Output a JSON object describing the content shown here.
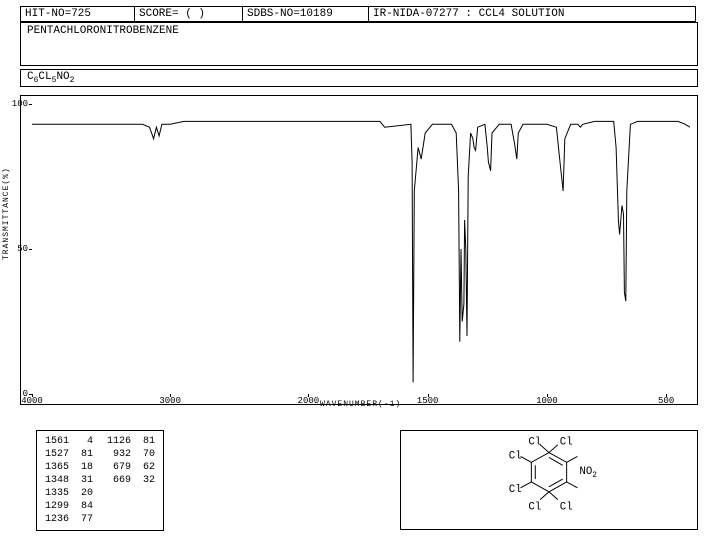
{
  "header": {
    "hit_no": "HIT-NO=725",
    "score": "SCORE=  (  )",
    "sdbs_no": "SDBS-NO=10189",
    "ir_info": "IR-NIDA-07277 : CCL4 SOLUTION"
  },
  "compound_name": "PENTACHLORONITROBENZENE",
  "formula_html": "C<sub>6</sub>CL<sub>5</sub>NO<sub>2</sub>",
  "chart": {
    "type": "line",
    "ylabel": "TRANSMITTANCE(%)",
    "xlabel": "WAVENUMBER(-1)",
    "ylim": [
      0,
      100
    ],
    "yticks": [
      0,
      50,
      100
    ],
    "xlim": [
      4000,
      400
    ],
    "xticks_major": [
      4000,
      3000,
      2000,
      1500,
      1000,
      500
    ],
    "line_color": "#000000",
    "background_color": "#ffffff",
    "points": [
      [
        4000,
        93
      ],
      [
        3900,
        93
      ],
      [
        3800,
        93
      ],
      [
        3700,
        93
      ],
      [
        3600,
        93
      ],
      [
        3500,
        93
      ],
      [
        3400,
        93
      ],
      [
        3300,
        93
      ],
      [
        3200,
        93
      ],
      [
        3150,
        92
      ],
      [
        3120,
        88
      ],
      [
        3100,
        92
      ],
      [
        3080,
        89
      ],
      [
        3060,
        93
      ],
      [
        3000,
        93
      ],
      [
        2900,
        94
      ],
      [
        2800,
        94
      ],
      [
        2700,
        94
      ],
      [
        2600,
        94
      ],
      [
        2500,
        94
      ],
      [
        2400,
        94
      ],
      [
        2300,
        94
      ],
      [
        2200,
        94
      ],
      [
        2100,
        94
      ],
      [
        2000,
        94
      ],
      [
        1900,
        94
      ],
      [
        1800,
        94
      ],
      [
        1700,
        94
      ],
      [
        1680,
        92
      ],
      [
        1570,
        93
      ],
      [
        1565,
        80
      ],
      [
        1561,
        4
      ],
      [
        1556,
        70
      ],
      [
        1540,
        85
      ],
      [
        1530,
        82
      ],
      [
        1527,
        81
      ],
      [
        1510,
        90
      ],
      [
        1480,
        93
      ],
      [
        1400,
        93
      ],
      [
        1380,
        90
      ],
      [
        1370,
        70
      ],
      [
        1365,
        18
      ],
      [
        1360,
        50
      ],
      [
        1355,
        25
      ],
      [
        1348,
        31
      ],
      [
        1345,
        60
      ],
      [
        1340,
        50
      ],
      [
        1335,
        20
      ],
      [
        1330,
        75
      ],
      [
        1320,
        90
      ],
      [
        1310,
        88
      ],
      [
        1305,
        85
      ],
      [
        1299,
        84
      ],
      [
        1290,
        92
      ],
      [
        1260,
        93
      ],
      [
        1250,
        85
      ],
      [
        1245,
        80
      ],
      [
        1236,
        77
      ],
      [
        1230,
        90
      ],
      [
        1200,
        93
      ],
      [
        1150,
        93
      ],
      [
        1135,
        86
      ],
      [
        1126,
        81
      ],
      [
        1120,
        90
      ],
      [
        1100,
        93
      ],
      [
        1050,
        93
      ],
      [
        1000,
        93
      ],
      [
        960,
        92
      ],
      [
        945,
        80
      ],
      [
        932,
        70
      ],
      [
        925,
        88
      ],
      [
        900,
        93
      ],
      [
        870,
        93
      ],
      [
        860,
        92
      ],
      [
        850,
        93
      ],
      [
        800,
        94
      ],
      [
        760,
        94
      ],
      [
        740,
        94
      ],
      [
        720,
        94
      ],
      [
        710,
        85
      ],
      [
        700,
        60
      ],
      [
        695,
        55
      ],
      [
        685,
        65
      ],
      [
        679,
        62
      ],
      [
        675,
        35
      ],
      [
        669,
        32
      ],
      [
        665,
        70
      ],
      [
        650,
        93
      ],
      [
        620,
        94
      ],
      [
        580,
        94
      ],
      [
        550,
        94
      ],
      [
        520,
        94
      ],
      [
        500,
        94
      ],
      [
        450,
        94
      ],
      [
        420,
        93
      ],
      [
        400,
        92
      ]
    ]
  },
  "peak_table": {
    "col1": [
      {
        "wn": "1561",
        "t": "4"
      },
      {
        "wn": "1527",
        "t": "81"
      },
      {
        "wn": "1365",
        "t": "18"
      },
      {
        "wn": "1348",
        "t": "31"
      },
      {
        "wn": "1335",
        "t": "20"
      },
      {
        "wn": "1299",
        "t": "84"
      },
      {
        "wn": "1236",
        "t": "77"
      }
    ],
    "col2": [
      {
        "wn": "1126",
        "t": "81"
      },
      {
        "wn": "932",
        "t": "70"
      },
      {
        "wn": "679",
        "t": "62"
      },
      {
        "wn": "669",
        "t": "32"
      }
    ]
  },
  "structure": {
    "labels": {
      "cl_tl": "Cl",
      "cl_tr": "Cl",
      "cl_l": "Cl",
      "cl_bl": "Cl",
      "cl_br": "Cl",
      "no2": "NO",
      "no2_sub": "2"
    },
    "line_color": "#000000"
  }
}
